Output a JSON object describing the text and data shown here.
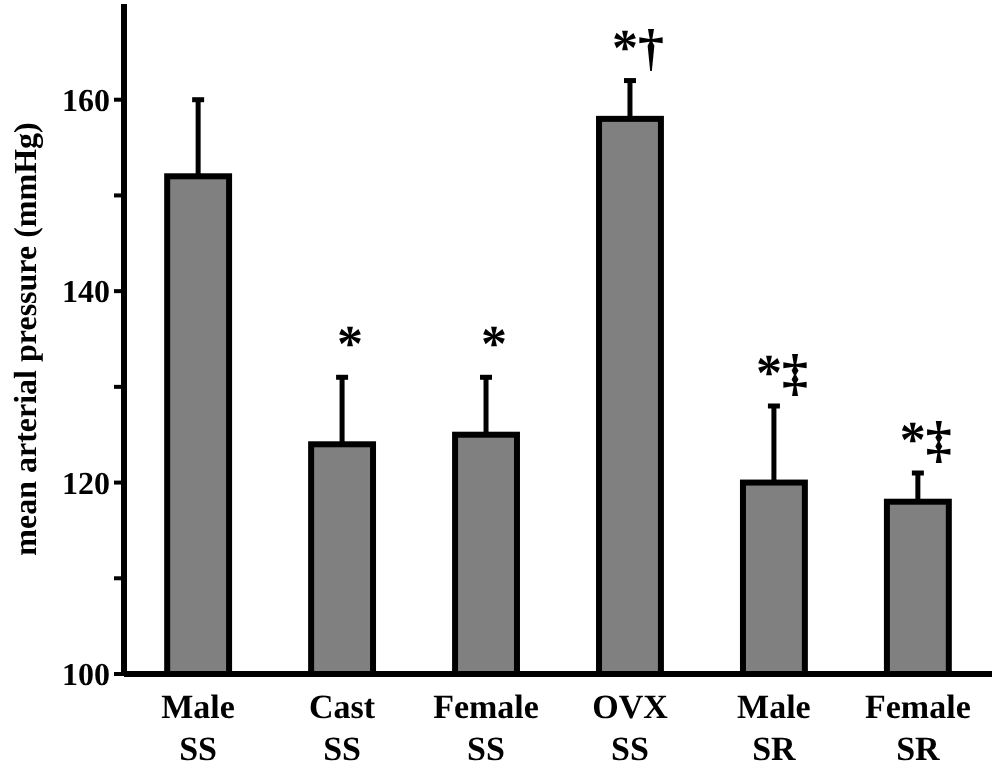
{
  "chart_data": {
    "type": "bar",
    "ylabel": "mean arterial pressure (mmHg)",
    "categories": [
      "Male\nSS",
      "Cast\nSS",
      "Female\nSS",
      "OVX\nSS",
      "Male\nSR",
      "Female\nSR"
    ],
    "values": [
      152,
      124,
      125,
      158,
      120,
      118
    ],
    "errors": [
      [
        152,
        160
      ],
      [
        124,
        131
      ],
      [
        125,
        131
      ],
      [
        158,
        162
      ],
      [
        120,
        128
      ],
      [
        118,
        121
      ]
    ],
    "color": "#808080",
    "ylim": [
      100,
      170
    ],
    "yticks": [
      100,
      {
        "value": 110,
        "label": null
      },
      120,
      {
        "value": 130,
        "label": null
      },
      140,
      {
        "value": 150,
        "label": null
      },
      160
    ],
    "annotations": [
      {
        "text": "*",
        "x": "Cast\nSS",
        "y": 131
      },
      {
        "text": "*",
        "x": "Female\nSS",
        "y": 131
      },
      {
        "text": "*†",
        "x": "OVX\nSS",
        "y": 162
      },
      {
        "text": "*‡",
        "x": "Male\nSR",
        "y": 128
      },
      {
        "text": "*‡",
        "x": "Female\nSR",
        "y": 121
      }
    ],
    "grid": false
  }
}
